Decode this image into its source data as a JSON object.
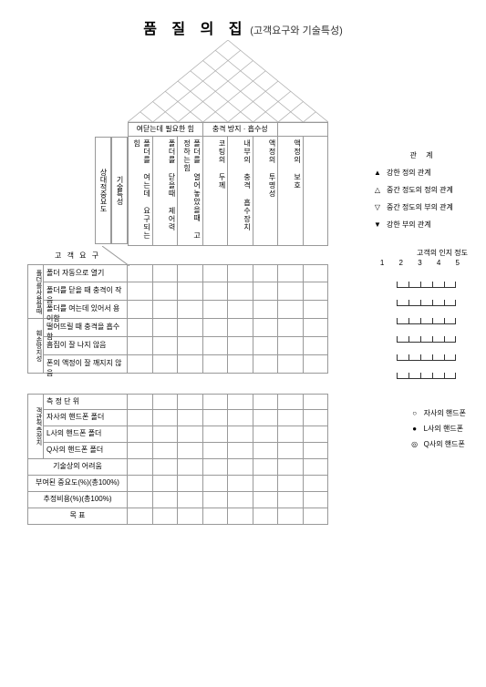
{
  "colors": {
    "border": "#999999",
    "text": "#000000",
    "bg": "#ffffff"
  },
  "title": {
    "main": "품 질 의   집",
    "sub": "(고객요구와 기술특성)"
  },
  "left_vertical": {
    "lv1": "상대적중요도",
    "lv2": "기술특성"
  },
  "column_groups": [
    {
      "label": "여닫는데 필요한 힘",
      "span": 3
    },
    {
      "label": "충격 방지 · 흡수성",
      "span": 3
    }
  ],
  "columns": [
    "폴더를 여는데 요구되는 힘",
    "폴더를 닫을때 제어력",
    "폴더를 열어놓았을때 고정하는힘",
    "코팅의 두께",
    "내부의 충격 흡수장치",
    "액정의 투명성",
    "액정의 보호"
  ],
  "row_section_header": "고 객 요 구",
  "row_groups": [
    {
      "side": "폴더를사용할때",
      "rows": [
        "폴더 자동으로 열기",
        "폴더를 닫을 때 충격이 작음",
        "폴더를 여는데 있어서 용이함"
      ]
    },
    {
      "side": "훼손방지성",
      "rows": [
        "떨어뜨릴 때 충격을 흡수함",
        "흠집이 잘 나지 않음",
        "폰의 액정이 잘 깨지지 않음"
      ]
    }
  ],
  "legend": {
    "title": "관   계",
    "items": [
      {
        "sym": "▲",
        "label": "강한 정의 관계"
      },
      {
        "sym": "△",
        "label": "중간 정도의 정의 관계"
      },
      {
        "sym": "▽",
        "label": "중간 정도의 부의 관계"
      },
      {
        "sym": "▼",
        "label": "강한 부의 관계"
      }
    ]
  },
  "perception": {
    "header": "고객의 인지 정도",
    "nums": "1 2 3 4 5"
  },
  "bottom_section": {
    "side": "객관적측정치",
    "rows": [
      "측 정 단 위",
      "자사의 핸드폰 폴더",
      "L사의 핸드폰 폴더",
      "Q사의 핸드폰 폴더"
    ],
    "wide_rows": [
      "기술상의 어려움",
      "부여된 중요도(%)(총100%)",
      "추정비용(%)(총100%)",
      "목   표"
    ]
  },
  "legend2": [
    {
      "sym": "○",
      "label": "자사의 핸드폰"
    },
    {
      "sym": "●",
      "label": "L사의 핸드폰"
    },
    {
      "sym": "◎",
      "label": "Q사의 핸드폰"
    }
  ],
  "roof": {
    "rows": 7
  }
}
